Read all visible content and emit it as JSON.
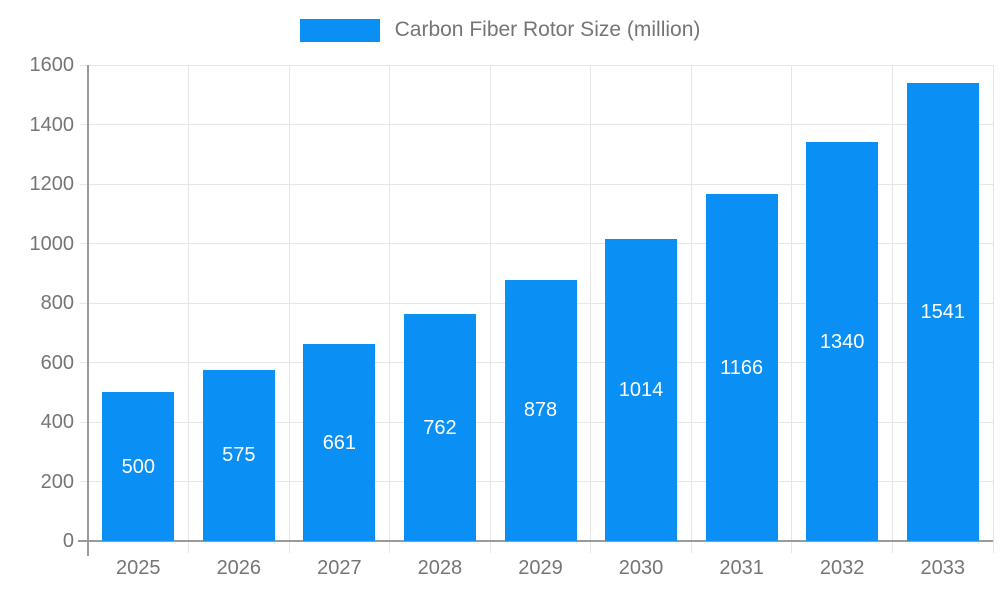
{
  "chart_data": {
    "type": "bar",
    "title": "Carbon Fiber Rotor Size (million)",
    "categories": [
      "2025",
      "2026",
      "2027",
      "2028",
      "2029",
      "2030",
      "2031",
      "2032",
      "2033"
    ],
    "values": [
      500,
      575,
      661,
      762,
      878,
      1014,
      1166,
      1340,
      1541
    ],
    "series": [
      {
        "name": "Carbon Fiber Rotor Size (million)",
        "values": [
          500,
          575,
          661,
          762,
          878,
          1014,
          1166,
          1340,
          1541
        ]
      }
    ],
    "xlabel": "",
    "ylabel": "",
    "ylim": [
      0,
      1600
    ],
    "ytick_step": 200,
    "ytick_labels": [
      "0",
      "200",
      "400",
      "600",
      "800",
      "1000",
      "1200",
      "1400",
      "1600"
    ],
    "grid": "on",
    "legend_position": "top-center",
    "value_labels": "inside-center-white",
    "colors": {
      "bar": "#0a8ff5",
      "value_label_text": "#ffffff",
      "tick_text": "#757575",
      "legend_text": "#757575",
      "gridline": "#e6e6e6",
      "axis_line": "#9a9a9a",
      "background": "#ffffff"
    }
  }
}
